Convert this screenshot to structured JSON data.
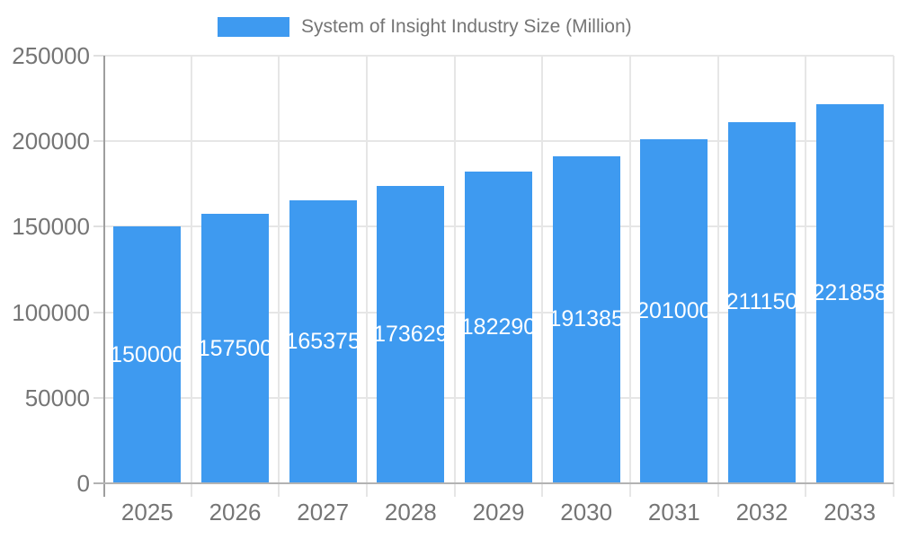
{
  "chart_data": {
    "type": "bar",
    "title": "System of Insight Industry Size (Million)",
    "categories": [
      "2025",
      "2026",
      "2027",
      "2028",
      "2029",
      "2030",
      "2031",
      "2032",
      "2033"
    ],
    "values": [
      150000,
      157500,
      165375,
      173629,
      182290,
      191385,
      201000,
      211150,
      221858
    ],
    "bar_value_labels": [
      "150000",
      "157500",
      "165375",
      "173629",
      "182290",
      "191385",
      "201000",
      "211150",
      "221858"
    ],
    "yticks": [
      0,
      50000,
      100000,
      150000,
      200000,
      250000
    ],
    "ytick_labels": [
      "0",
      "50000",
      "100000",
      "150000",
      "200000",
      "250000"
    ],
    "ylim": [
      0,
      250000
    ],
    "xlabel": "",
    "ylabel": "",
    "grid": true,
    "legend_position": "top",
    "colors": {
      "bar": "#3e9af0",
      "bar_label": "#ffffff",
      "axis_label": "#757575",
      "legend_label": "#757575",
      "gridline": "#e6e6e6",
      "axis_line": "#9e9e9e",
      "baseline": "#b3b3b3"
    }
  }
}
